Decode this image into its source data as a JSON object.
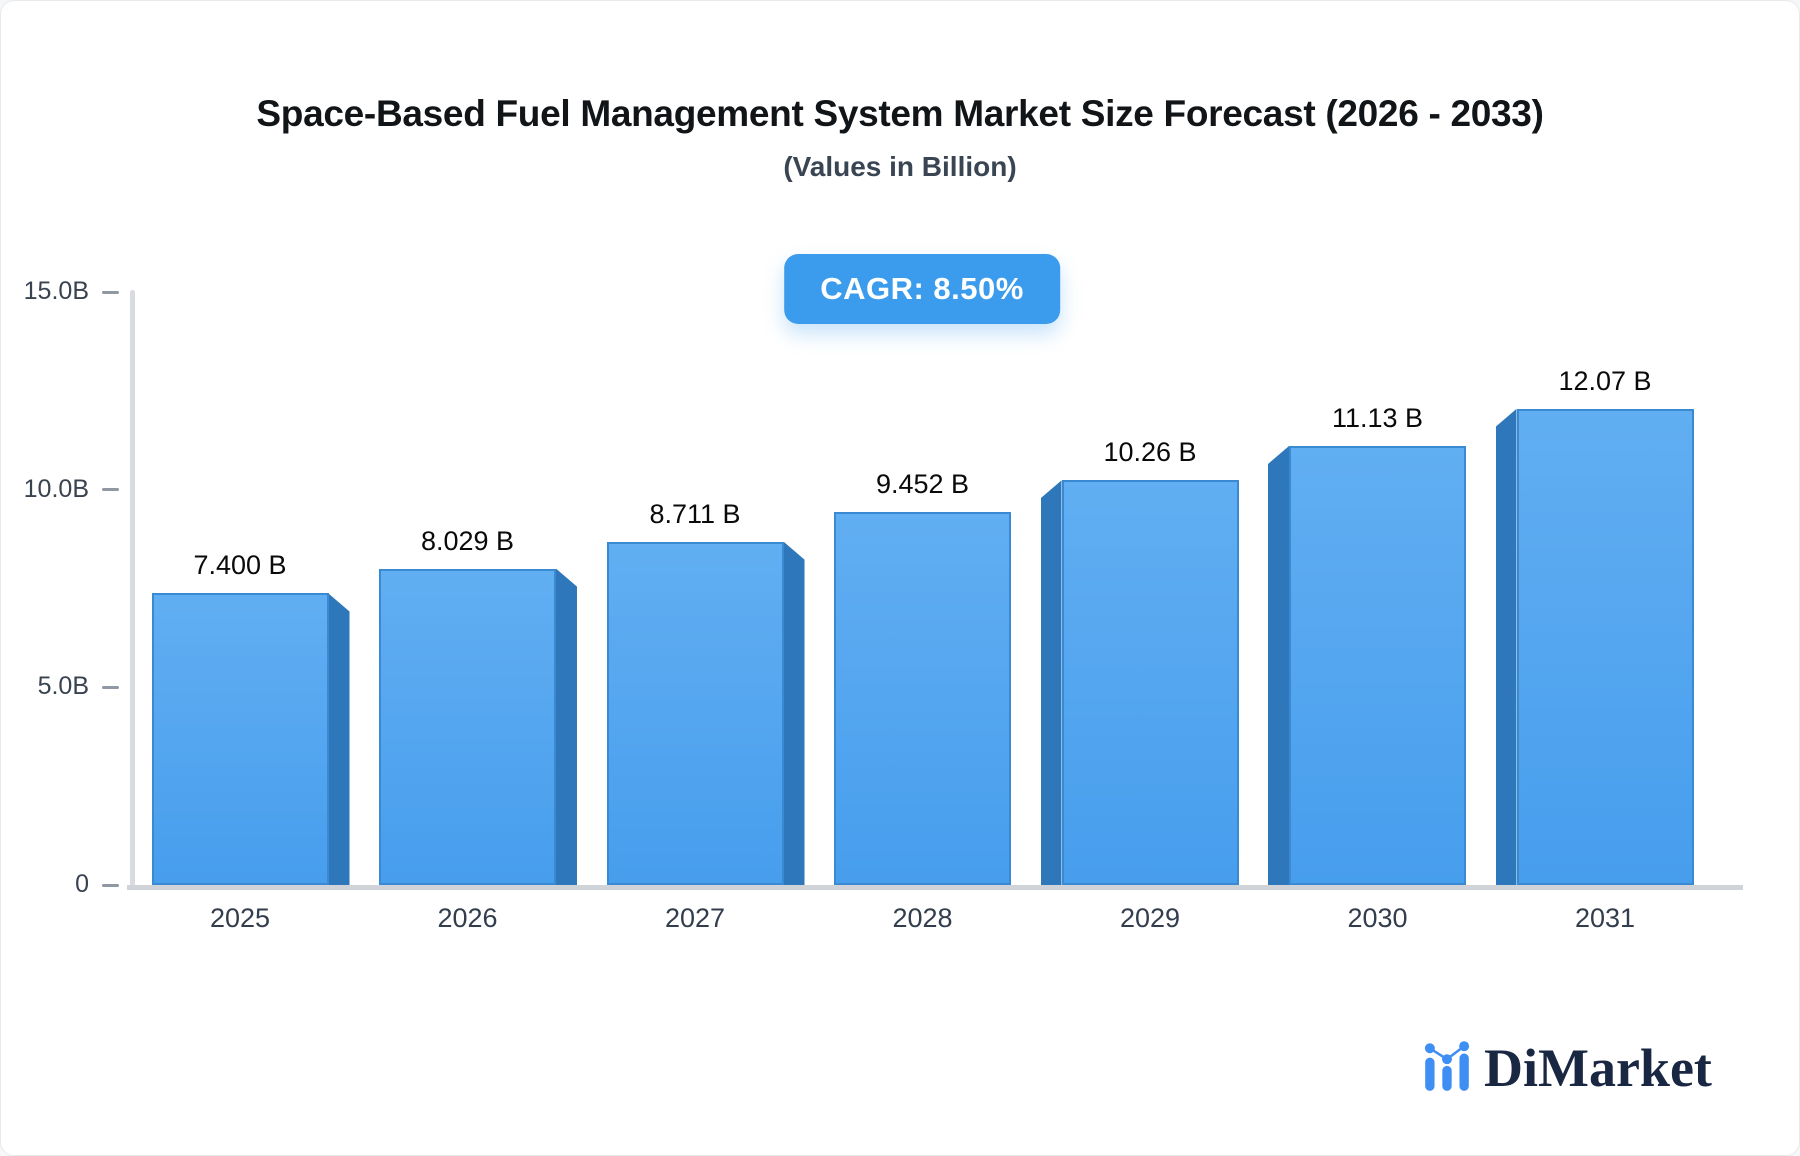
{
  "header": {
    "title": "Space-Based Fuel Management System Market Size Forecast (2026 - 2033)",
    "subtitle": "(Values in Billion)",
    "cagr_badge": "CAGR: 8.50%"
  },
  "chart_data": {
    "type": "bar",
    "categories": [
      "2025",
      "2026",
      "2027",
      "2028",
      "2029",
      "2030",
      "2031"
    ],
    "values": [
      7.4,
      8.029,
      8.711,
      9.452,
      10.26,
      11.13,
      12.07
    ],
    "value_labels": [
      "7.400 B",
      "8.029 B",
      "8.711 B",
      "9.452 B",
      "10.26 B",
      "11.13 B",
      "12.07 B"
    ],
    "title": "Space-Based Fuel Management System Market Size Forecast (2026 - 2033)",
    "subtitle": "(Values in Billion)",
    "annotation": "CAGR: 8.50%",
    "xlabel": "",
    "ylabel": "",
    "ylim": [
      0,
      15
    ],
    "yticks": [
      {
        "value": 0,
        "label": "0"
      },
      {
        "value": 5,
        "label": "5.0B"
      },
      {
        "value": 10,
        "label": "10.0B"
      },
      {
        "value": 15,
        "label": "15.0B"
      }
    ],
    "grid": false,
    "legend": false,
    "bar_style": "3d-perspective, side shading faces plot center"
  },
  "footer": {
    "brand": "DiMarket"
  },
  "colors": {
    "accent_blue": "#3b9ced",
    "bar_face_top": "#61aef2",
    "bar_face_bottom": "#479eed",
    "bar_border": "#3a8ad3",
    "bar_side": "#2e77ba",
    "axis_line": "#d8dbdf",
    "baseline": "#d0d4d8",
    "tick": "#8f98a3",
    "tick_text": "#39434f",
    "category_text": "#323d4d",
    "value_text": "#0a0a0a",
    "title_text": "#121518",
    "subtitle_text": "#3a4553",
    "logo_navy": "#1a2742",
    "logo_blue": "#3f8ef3"
  },
  "icons": {
    "logo_icon": "bar-chart-with-trend-line-icon"
  }
}
